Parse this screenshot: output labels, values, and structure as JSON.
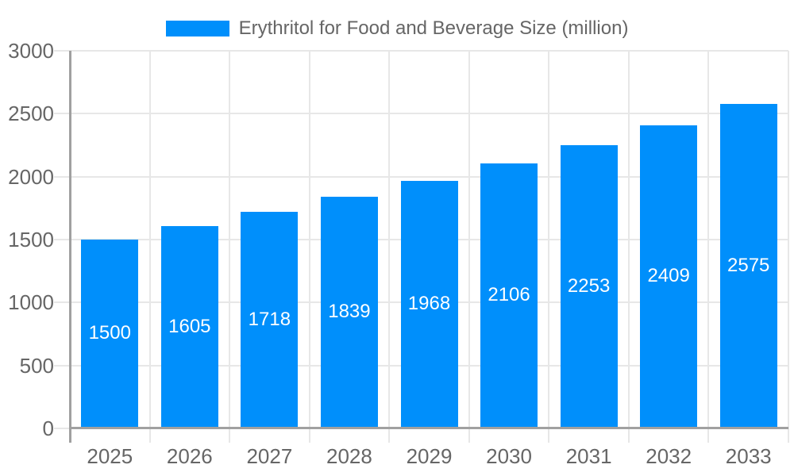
{
  "colors": {
    "bar": "#008FFB",
    "grid": "#e7e7e7",
    "axis": "#a0a0a0",
    "tick_text": "#666666",
    "value_text": "#ffffff",
    "background": "#ffffff"
  },
  "chart_data": {
    "type": "bar",
    "title": "Erythritol for Food and Beverage Size (million)",
    "categories": [
      "2025",
      "2026",
      "2027",
      "2028",
      "2029",
      "2030",
      "2031",
      "2032",
      "2033"
    ],
    "values": [
      1500,
      1605,
      1718,
      1839,
      1968,
      2106,
      2253,
      2409,
      2575
    ],
    "xlabel": "",
    "ylabel": "",
    "ylim": [
      0,
      3000
    ],
    "ytick_step": 500,
    "grid": true,
    "legend_position": "top-center",
    "value_labels": "inside-center"
  }
}
